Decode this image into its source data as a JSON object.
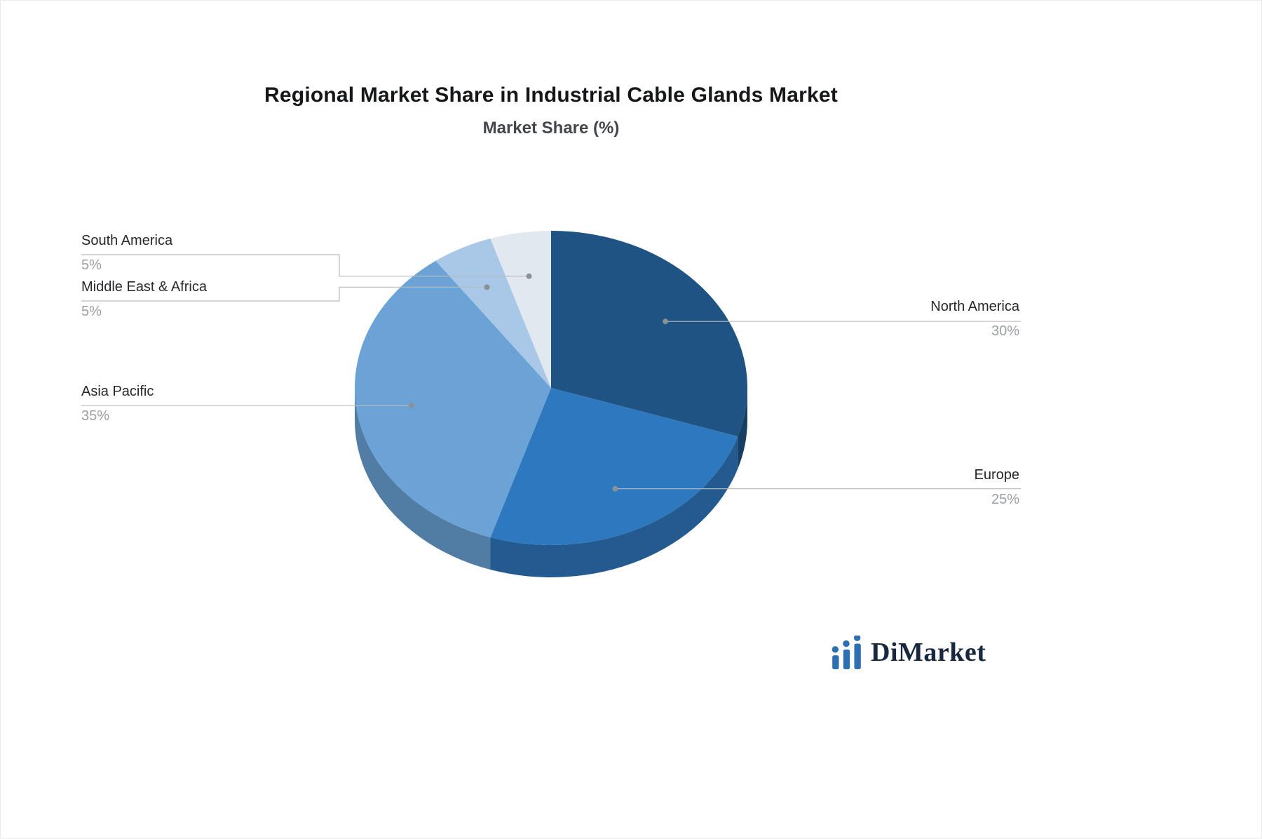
{
  "title": "Regional Market Share in Industrial Cable Glands Market",
  "subtitle": "Market Share (%)",
  "brand": {
    "name": "DiMarket",
    "icon": "bar-chart-logo-icon",
    "icon_color": "#2e6fb2",
    "text_color": "#18293f"
  },
  "chart_data": {
    "type": "pie",
    "title": "Regional Market Share in Industrial Cable Glands Market",
    "subtitle": "Market Share (%)",
    "unit": "%",
    "effect": "3d",
    "start_angle_deg": -90,
    "direction": "clockwise",
    "legend_position": "callout-labels",
    "grid": false,
    "slices": [
      {
        "label": "North America",
        "value": 30,
        "display": "30%",
        "color": "#1e5384"
      },
      {
        "label": "Europe",
        "value": 25,
        "display": "25%",
        "color": "#2e78bf"
      },
      {
        "label": "Asia Pacific",
        "value": 35,
        "display": "35%",
        "color": "#6ba3d6"
      },
      {
        "label": "Middle East & Africa",
        "value": 5,
        "display": "5%",
        "color": "#a9c8e8"
      },
      {
        "label": "South America",
        "value": 5,
        "display": "5%",
        "color": "#e2e8f0"
      }
    ]
  }
}
